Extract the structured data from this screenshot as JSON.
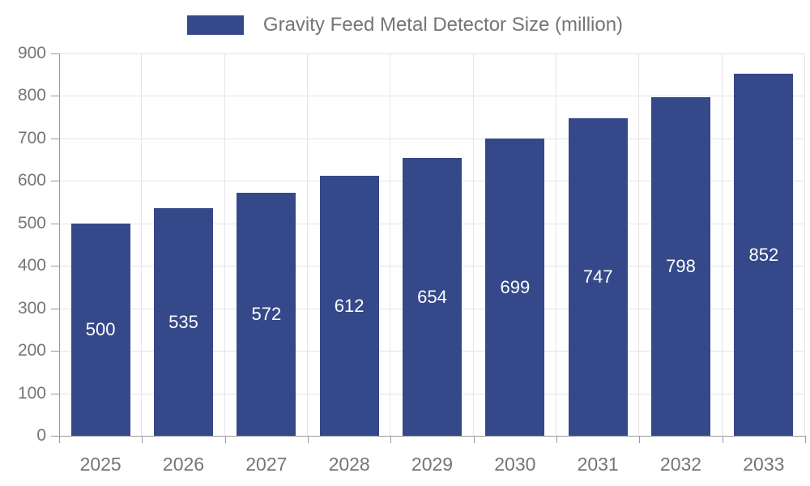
{
  "legend": {
    "label": "Gravity Feed Metal Detector Size (million)"
  },
  "chart_data": {
    "type": "bar",
    "title": "Gravity Feed Metal Detector Size (million)",
    "categories": [
      "2025",
      "2026",
      "2027",
      "2028",
      "2029",
      "2030",
      "2031",
      "2032",
      "2033"
    ],
    "values": [
      500,
      535,
      572,
      612,
      654,
      699,
      747,
      798,
      852
    ],
    "series": [
      {
        "name": "Gravity Feed Metal Detector Size (million)",
        "values": [
          500,
          535,
          572,
          612,
          654,
          699,
          747,
          798,
          852
        ]
      }
    ],
    "xlabel": "",
    "ylabel": "",
    "ylim": [
      0,
      900
    ],
    "ytick_interval": 100,
    "yticks": [
      "0",
      "100",
      "200",
      "300",
      "400",
      "500",
      "600",
      "700",
      "800",
      "900"
    ],
    "grid": true,
    "legend_position": "top",
    "value_label_position": "inside-center"
  },
  "colors": {
    "bar": "#35488A",
    "grid": "#E4E4EA",
    "axis": "#9A9A9A",
    "text": "#757575",
    "value_label": "#FFFFFF",
    "background": "#FFFFFF"
  }
}
